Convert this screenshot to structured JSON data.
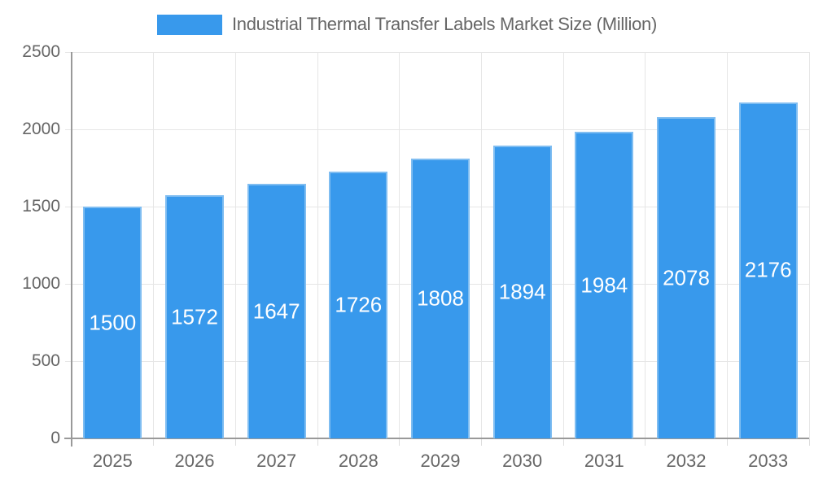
{
  "chart_data": {
    "type": "bar",
    "title": "Industrial Thermal Transfer Labels Market Size (Million)",
    "categories": [
      "2025",
      "2026",
      "2027",
      "2028",
      "2029",
      "2030",
      "2031",
      "2032",
      "2033"
    ],
    "values": [
      1500,
      1572,
      1647,
      1726,
      1808,
      1894,
      1984,
      2078,
      2176
    ],
    "xlabel": "",
    "ylabel": "",
    "ylim": [
      0,
      2500
    ],
    "yticks": [
      0,
      500,
      1000,
      1500,
      2000,
      2500
    ],
    "grid": true,
    "legend_position": "top",
    "value_labels": "inside-center",
    "colors": {
      "bar_fill": "#3899ec",
      "bar_border": "#7fbdf1",
      "value_label": "#ffffff",
      "grid": "#e6e6e6",
      "axis_line": "#999999",
      "tick_label": "#666666",
      "legend_text": "#666666",
      "background": "#ffffff"
    }
  }
}
